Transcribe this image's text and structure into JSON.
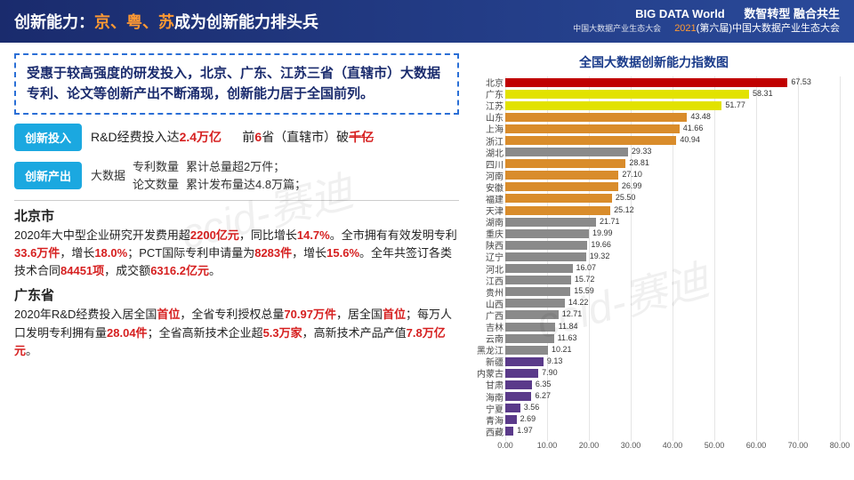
{
  "header": {
    "title_prefix": "创新能力：",
    "title_highlight": "京、粤、苏",
    "title_suffix": "成为创新能力排头兵",
    "logo_main": "BIG DATA World",
    "logo_sub": "中国大数据产业生态大会",
    "tagline": "数智转型 融合共生",
    "event_year": "2021",
    "event_text": "(第六届)中国大数据产业生态大会"
  },
  "summary": "受惠于较高强度的研发投入，北京、广东、江苏三省（直辖市）大数据专利、论文等创新产出不断涌现，创新能力居于全国前列。",
  "input_badge": "创新投入",
  "input_text_1a": "R&D经费投入达",
  "input_text_1b": "2.4万亿",
  "input_text_2a": "前",
  "input_text_2b": "6",
  "input_text_2c": "省（直辖市）破",
  "input_text_2d": "千亿",
  "output_badge": "创新产出",
  "output_label": "大数据",
  "output_line1a": "专利数量",
  "output_line1b": "累计总量超2万件；",
  "output_line2a": "论文数量",
  "output_line2b": "累计发布量达4.8万篇；",
  "beijing": {
    "title": "北京市",
    "l1a": "2020年大中型企业研究开发费用超",
    "l1b": "2200亿元",
    "l1c": "，同比增长",
    "l1d": "14.7%",
    "l1e": "。全市拥有有效发明专利",
    "l1f": "33.6万件",
    "l1g": "，增长",
    "l1h": "18.0%",
    "l1i": "；PCT国际专利申请量为",
    "l1j": "8283件",
    "l1k": "，增长",
    "l1l": "15.6%",
    "l1m": "。全年共签订各类技术合同",
    "l1n": "84451项",
    "l1o": "，成交额",
    "l1p": "6316.2亿元",
    "l1q": "。"
  },
  "guangdong": {
    "title": "广东省",
    "l1a": "2020年R&D经费投入居全国",
    "l1b": "首位",
    "l1c": "，全省专利授权总量",
    "l1d": "70.97万件",
    "l1e": "，居全国",
    "l1f": "首位",
    "l1g": "；每万人口发明专利拥有量",
    "l1h": "28.04件",
    "l1i": "；全省高新技术企业超",
    "l1j": "5.3万家",
    "l1k": "，高新技术产品产值",
    "l1l": "7.8万亿元",
    "l1m": "。"
  },
  "chart": {
    "title": "全国大数据创新能力指数图",
    "xmax": 80,
    "xtick_step": 10,
    "xticks": [
      "0.00",
      "10.00",
      "20.00",
      "30.00",
      "40.00",
      "50.00",
      "60.00",
      "70.00",
      "80.00"
    ],
    "label_fontsize": 10,
    "value_fontsize": 9,
    "background_color": "#ffffff",
    "grid_color": "#e5e5e5",
    "bars": [
      {
        "label": "北京",
        "value": 67.53,
        "color": "#c00000"
      },
      {
        "label": "广东",
        "value": 58.31,
        "color": "#e2e200"
      },
      {
        "label": "江苏",
        "value": 51.77,
        "color": "#e2e200"
      },
      {
        "label": "山东",
        "value": 43.48,
        "color": "#d98c2b"
      },
      {
        "label": "上海",
        "value": 41.66,
        "color": "#d98c2b"
      },
      {
        "label": "浙江",
        "value": 40.94,
        "color": "#d98c2b"
      },
      {
        "label": "湖北",
        "value": 29.33,
        "color": "#8a8a8a"
      },
      {
        "label": "四川",
        "value": 28.81,
        "color": "#d98c2b"
      },
      {
        "label": "河南",
        "value": 27.1,
        "color": "#d98c2b"
      },
      {
        "label": "安徽",
        "value": 26.99,
        "color": "#d98c2b"
      },
      {
        "label": "福建",
        "value": 25.5,
        "color": "#d98c2b"
      },
      {
        "label": "天津",
        "value": 25.12,
        "color": "#d98c2b"
      },
      {
        "label": "湖南",
        "value": 21.71,
        "color": "#8a8a8a"
      },
      {
        "label": "重庆",
        "value": 19.99,
        "color": "#8a8a8a"
      },
      {
        "label": "陕西",
        "value": 19.66,
        "color": "#8a8a8a"
      },
      {
        "label": "辽宁",
        "value": 19.32,
        "color": "#8a8a8a"
      },
      {
        "label": "河北",
        "value": 16.07,
        "color": "#8a8a8a"
      },
      {
        "label": "江西",
        "value": 15.72,
        "color": "#8a8a8a"
      },
      {
        "label": "贵州",
        "value": 15.59,
        "color": "#8a8a8a"
      },
      {
        "label": "山西",
        "value": 14.22,
        "color": "#8a8a8a"
      },
      {
        "label": "广西",
        "value": 12.71,
        "color": "#8a8a8a"
      },
      {
        "label": "吉林",
        "value": 11.84,
        "color": "#8a8a8a"
      },
      {
        "label": "云南",
        "value": 11.63,
        "color": "#8a8a8a"
      },
      {
        "label": "黑龙江",
        "value": 10.21,
        "color": "#8a8a8a"
      },
      {
        "label": "新疆",
        "value": 9.13,
        "color": "#5a3a8a"
      },
      {
        "label": "内蒙古",
        "value": 7.9,
        "color": "#5a3a8a"
      },
      {
        "label": "甘肃",
        "value": 6.35,
        "color": "#5a3a8a"
      },
      {
        "label": "海南",
        "value": 6.27,
        "color": "#5a3a8a"
      },
      {
        "label": "宁夏",
        "value": 3.56,
        "color": "#5a3a8a"
      },
      {
        "label": "青海",
        "value": 2.69,
        "color": "#5a3a8a"
      },
      {
        "label": "西藏",
        "value": 1.97,
        "color": "#5a3a8a"
      }
    ]
  },
  "watermark": "ccid-赛迪"
}
